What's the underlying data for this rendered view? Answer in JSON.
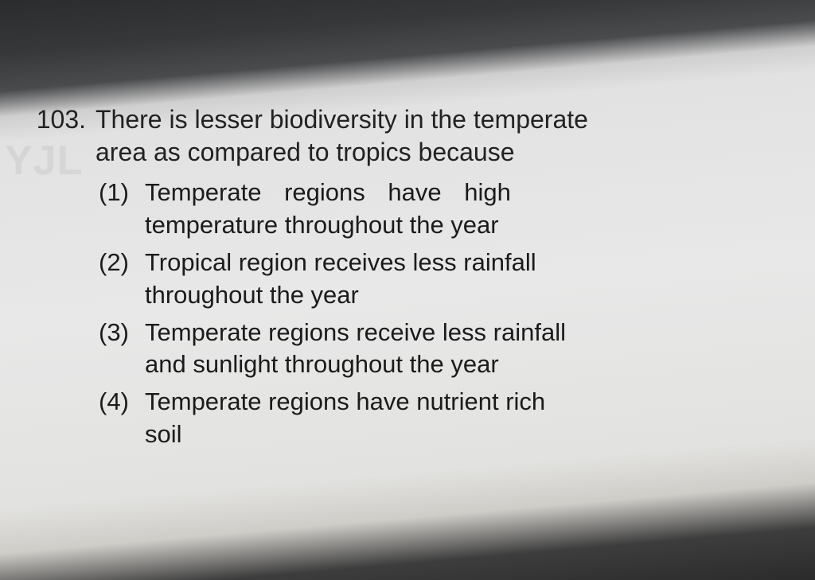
{
  "page": {
    "background_gradient": [
      "#2a2c2e",
      "#e8e8e8",
      "#2b2b2b"
    ],
    "text_color": "#1a1a1a",
    "font_family": "Arial",
    "watermark_text": "YJL",
    "watermark_color": "rgba(120,120,120,0.12)"
  },
  "question": {
    "number": "103.",
    "stem_line1": "There is lesser biodiversity in the temperate",
    "stem_line2": "area as compared to tropics because",
    "number_fontsize": 32,
    "stem_fontsize": 32,
    "option_fontsize": 31,
    "options": [
      {
        "marker": "(1)",
        "line1": "Temperate regions have high",
        "line2": "temperature throughout the year"
      },
      {
        "marker": "(2)",
        "line1": "Tropical region receives less rainfall",
        "line2": "throughout the year"
      },
      {
        "marker": "(3)",
        "line1": "Temperate regions receive less rainfall",
        "line2": "and sunlight throughout the year"
      },
      {
        "marker": "(4)",
        "line1": "Temperate regions have nutrient rich",
        "line2": "soil"
      }
    ]
  }
}
